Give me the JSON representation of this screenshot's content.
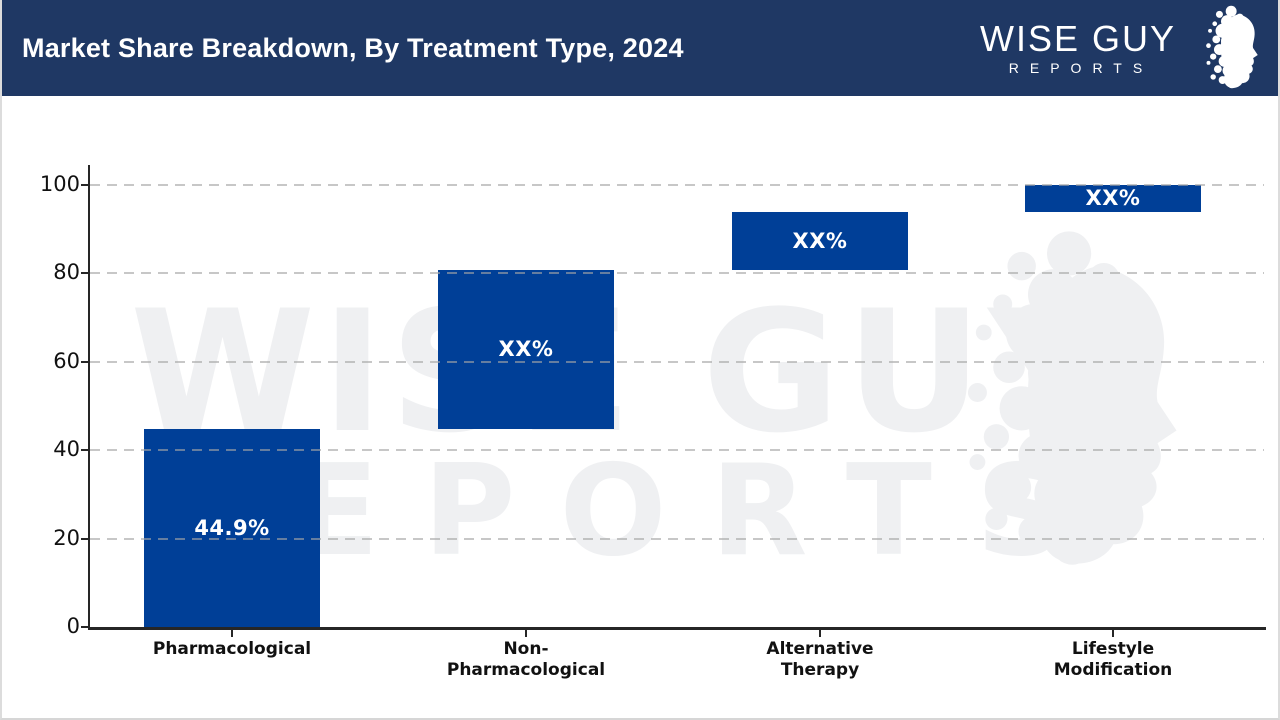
{
  "header": {
    "title": "Market Share Breakdown, By Treatment Type, 2024",
    "logo": {
      "line1": "WISE GUY",
      "line2": "REPORTS"
    }
  },
  "watermark": {
    "line1": "WISE GUY",
    "line2": "REPORTS"
  },
  "chart_data": {
    "type": "bar",
    "subtype": "waterfall",
    "title": "Market Share Breakdown, By Treatment Type, 2024",
    "categories": [
      [
        "Pharmacological"
      ],
      [
        "Non-",
        "Pharmacological"
      ],
      [
        "Alternative",
        "Therapy"
      ],
      [
        "Lifestyle",
        "Modification"
      ]
    ],
    "segments": [
      {
        "start": 0,
        "end": 44.9,
        "label": "44.9%"
      },
      {
        "start": 44.9,
        "end": 80.7,
        "label": "XX%"
      },
      {
        "start": 80.7,
        "end": 93.9,
        "label": "XX%"
      },
      {
        "start": 93.9,
        "end": 100,
        "label": "XX%"
      }
    ],
    "yticks": [
      0,
      20,
      40,
      60,
      80,
      100
    ],
    "ylim": [
      0,
      104.5
    ],
    "xlabel": "",
    "ylabel": "",
    "grid": "dashed-horizontal",
    "legend": "none",
    "bar_color": "#003f97",
    "value_label_color": "#ffffff"
  },
  "colors": {
    "header_bg": "#1f3864",
    "axis": "#262626",
    "grid": "#cccccc",
    "watermark": "#eff0f2",
    "card_border": "#dcdcdc"
  }
}
